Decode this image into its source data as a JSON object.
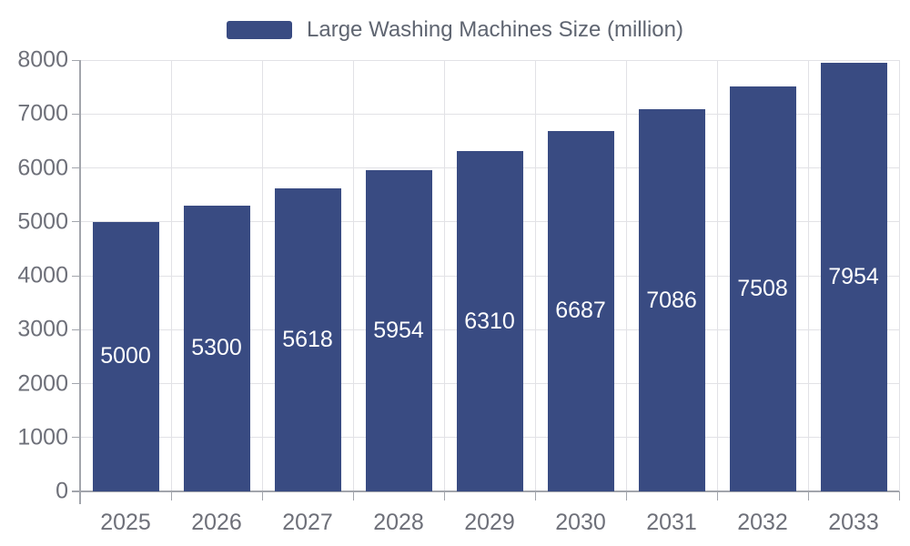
{
  "chart_data": {
    "type": "bar",
    "legend_label": "Large Washing Machines Size (million)",
    "categories": [
      "2025",
      "2026",
      "2027",
      "2028",
      "2029",
      "2030",
      "2031",
      "2032",
      "2033"
    ],
    "values": [
      5000,
      5300,
      5618,
      5954,
      6310,
      6687,
      7086,
      7508,
      7954
    ],
    "value_labels": [
      "5000",
      "5300",
      "5618",
      "5954",
      "6310",
      "6687",
      "7086",
      "7508",
      "7954"
    ],
    "value_label_position": "inside-middle",
    "xlabel": "",
    "ylabel": "",
    "ylim": [
      0,
      8000
    ],
    "y_tick_interval": 1000,
    "y_tick_labels": [
      "0",
      "1000",
      "2000",
      "3000",
      "4000",
      "5000",
      "6000",
      "7000",
      "8000"
    ],
    "grid": true,
    "legend_position": "top-center",
    "colors": {
      "bar": "#394B82",
      "value_label": "#FFFFFF",
      "axis_label": "#6E7079",
      "legend_text": "#5F6571",
      "gridline": "#E2E2E6",
      "axis_line": "#A2A5AC",
      "background": "#FFFFFF"
    }
  }
}
